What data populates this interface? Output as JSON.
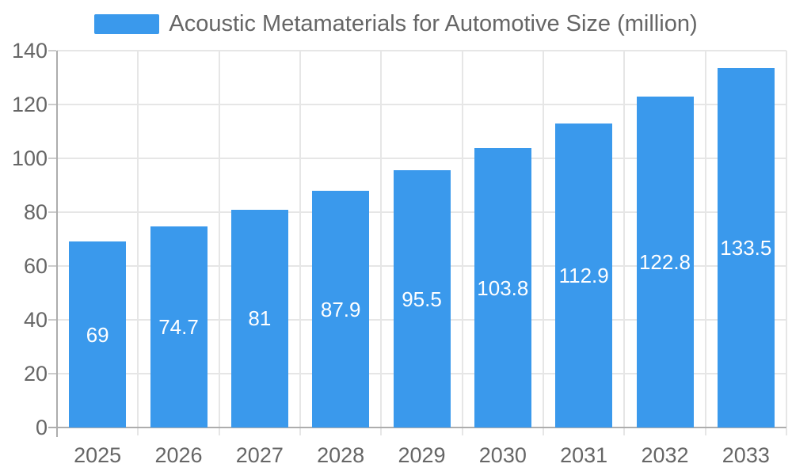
{
  "legend": {
    "label": "Acoustic Metamaterials for Automotive Size (million)"
  },
  "colors": {
    "bar": "#3A99EC",
    "axis_line": "#ADADAD",
    "grid_line": "#E6E6E6",
    "tick_mark": "#CCCCCC",
    "tick_text": "#666666",
    "legend_text": "#666666",
    "bar_label_text": "#FFFFFF",
    "background": "#FFFFFF"
  },
  "chart_data": {
    "type": "bar",
    "title": "Acoustic Metamaterials for Automotive Size (million)",
    "series_name": "Acoustic Metamaterials for Automotive Size (million)",
    "categories": [
      "2025",
      "2026",
      "2027",
      "2028",
      "2029",
      "2030",
      "2031",
      "2032",
      "2033"
    ],
    "values": [
      69,
      74.7,
      81,
      87.9,
      95.5,
      103.8,
      112.9,
      122.8,
      133.5
    ],
    "bar_labels": [
      "69",
      "74.7",
      "81",
      "87.9",
      "95.5",
      "103.8",
      "112.9",
      "122.8",
      "133.5"
    ],
    "xlabel": "",
    "ylabel": "",
    "ylim": [
      0,
      140
    ],
    "ytick_interval": 20,
    "yticks": [
      0,
      20,
      40,
      60,
      80,
      100,
      120,
      140
    ],
    "grid": true,
    "legend_position": "top-center",
    "bar_value_labels": "inside-center"
  }
}
